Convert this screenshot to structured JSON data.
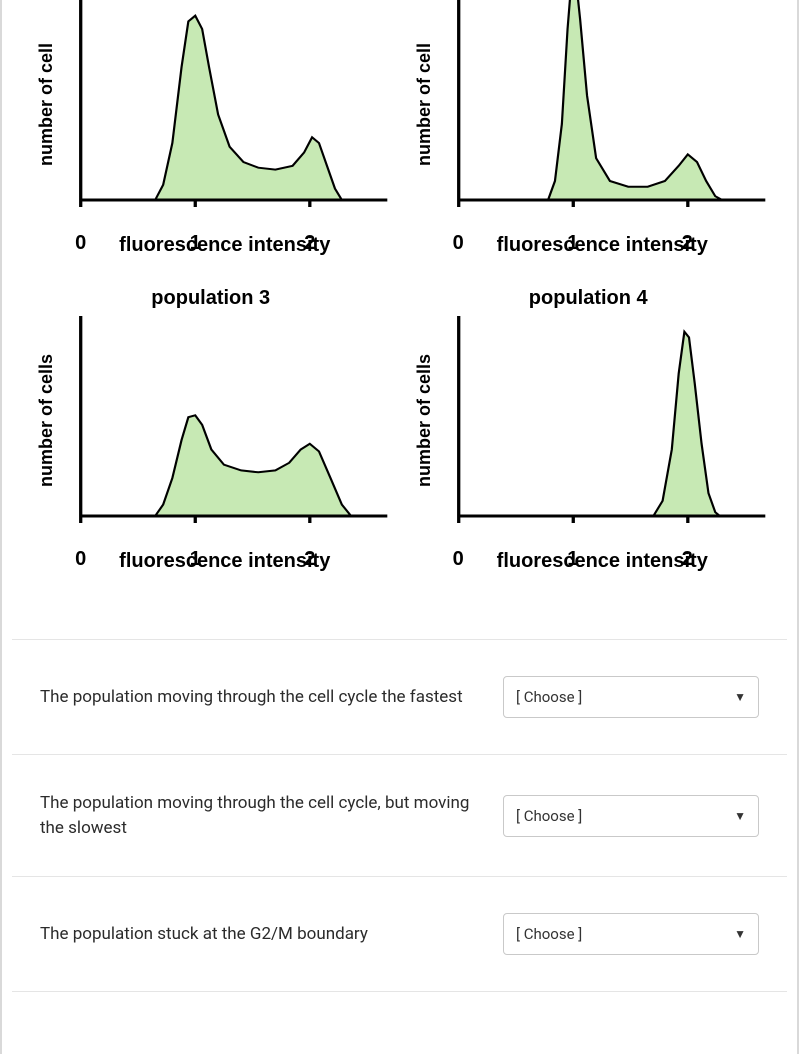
{
  "charts": {
    "fill_color": "#c7e9b4",
    "stroke_color": "#000000",
    "stroke_width": 2,
    "axis_stroke": "#000000",
    "axis_width": 3,
    "xlabel": "fluorescence intensity",
    "ylabel_full": "number of cells",
    "ylabel_cut": "number of cell",
    "xticks": [
      0,
      1,
      2
    ],
    "xlim": [
      0,
      2.6
    ],
    "ylim": [
      0,
      100
    ],
    "panels": [
      {
        "id": "p1",
        "title": "",
        "ylabel_key": "ylabel_cut",
        "points": [
          [
            0.65,
            0
          ],
          [
            0.72,
            8
          ],
          [
            0.8,
            30
          ],
          [
            0.88,
            70
          ],
          [
            0.94,
            94
          ],
          [
            1.0,
            97
          ],
          [
            1.06,
            90
          ],
          [
            1.12,
            70
          ],
          [
            1.2,
            45
          ],
          [
            1.3,
            28
          ],
          [
            1.42,
            20
          ],
          [
            1.55,
            17
          ],
          [
            1.7,
            16
          ],
          [
            1.85,
            18
          ],
          [
            1.95,
            25
          ],
          [
            2.02,
            33
          ],
          [
            2.08,
            30
          ],
          [
            2.15,
            18
          ],
          [
            2.22,
            6
          ],
          [
            2.28,
            0
          ]
        ]
      },
      {
        "id": "p2",
        "title": "",
        "ylabel_key": "ylabel_cut",
        "points": [
          [
            0.78,
            0
          ],
          [
            0.84,
            10
          ],
          [
            0.9,
            40
          ],
          [
            0.95,
            90
          ],
          [
            0.99,
            120
          ],
          [
            1.02,
            118
          ],
          [
            1.06,
            95
          ],
          [
            1.12,
            55
          ],
          [
            1.2,
            22
          ],
          [
            1.32,
            10
          ],
          [
            1.48,
            7
          ],
          [
            1.65,
            7
          ],
          [
            1.8,
            10
          ],
          [
            1.92,
            18
          ],
          [
            2.0,
            24
          ],
          [
            2.08,
            20
          ],
          [
            2.16,
            10
          ],
          [
            2.24,
            2
          ],
          [
            2.3,
            0
          ]
        ]
      },
      {
        "id": "p3",
        "title": "population 3",
        "ylabel_key": "ylabel_full",
        "points": [
          [
            0.65,
            0
          ],
          [
            0.72,
            6
          ],
          [
            0.8,
            20
          ],
          [
            0.88,
            40
          ],
          [
            0.94,
            52
          ],
          [
            1.0,
            53
          ],
          [
            1.06,
            48
          ],
          [
            1.14,
            35
          ],
          [
            1.25,
            27
          ],
          [
            1.4,
            24
          ],
          [
            1.55,
            23
          ],
          [
            1.7,
            24
          ],
          [
            1.82,
            28
          ],
          [
            1.92,
            35
          ],
          [
            2.0,
            38
          ],
          [
            2.08,
            34
          ],
          [
            2.18,
            20
          ],
          [
            2.28,
            6
          ],
          [
            2.36,
            0
          ]
        ]
      },
      {
        "id": "p4",
        "title": "population 4",
        "ylabel_key": "ylabel_full",
        "points": [
          [
            1.7,
            0
          ],
          [
            1.78,
            8
          ],
          [
            1.86,
            35
          ],
          [
            1.92,
            75
          ],
          [
            1.97,
            97
          ],
          [
            2.01,
            94
          ],
          [
            2.06,
            70
          ],
          [
            2.12,
            38
          ],
          [
            2.18,
            12
          ],
          [
            2.24,
            2
          ],
          [
            2.28,
            0
          ]
        ]
      }
    ]
  },
  "questions": [
    {
      "text": "The population moving through the cell cycle the fastest",
      "selected": "[ Choose ]"
    },
    {
      "text": "The population moving through the cell cycle, but moving the slowest",
      "selected": "[ Choose ]"
    },
    {
      "text": "The population stuck at the G2/M boundary",
      "selected": "[ Choose ]"
    }
  ]
}
